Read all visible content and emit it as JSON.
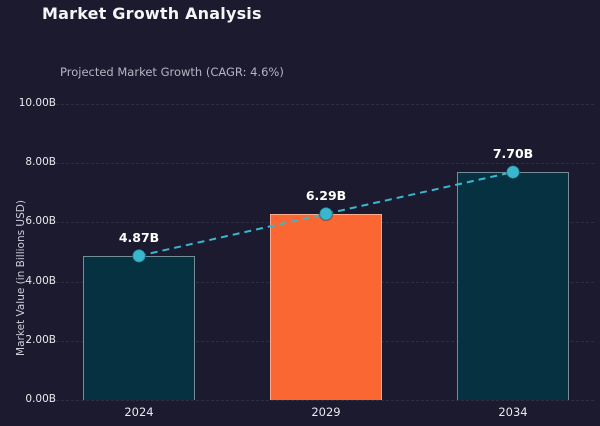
{
  "header": {
    "title": "Market Growth Analysis"
  },
  "chart_data": {
    "type": "bar",
    "title": "Projected Market Growth (CAGR: 4.6%)",
    "categories": [
      "2024",
      "2029",
      "2034"
    ],
    "values": [
      4.87,
      6.29,
      7.7
    ],
    "value_labels": [
      "4.87B",
      "6.29B",
      "7.70B"
    ],
    "xlabel": "",
    "ylabel": "Market Value (in Billions USD)",
    "ylim": [
      0,
      10
    ],
    "yticks": [
      0,
      2,
      4,
      6,
      8,
      10
    ],
    "ytick_labels": [
      "0.00B",
      "2.00B",
      "4.00B",
      "6.00B",
      "8.00B",
      "10.00B"
    ],
    "grid": "horizontal-dashed",
    "legend_position": "none",
    "trend_line": {
      "style": "dashed",
      "values": [
        4.87,
        6.29,
        7.7
      ],
      "marker": "circle"
    },
    "colors": {
      "background": "#1b1a2e",
      "bar_fills": [
        "#063140",
        "#fa6732",
        "#063140"
      ],
      "bar_edge": "rgba(255,255,255,0.45)",
      "trend_line": "#39b7cd",
      "title_text": "#f5f5f7",
      "subtitle_text": "#b6b5c2",
      "tick_text": "#e9e9f0",
      "axis_label_text": "#cfcfda",
      "value_label_text": "#ffffff"
    }
  }
}
